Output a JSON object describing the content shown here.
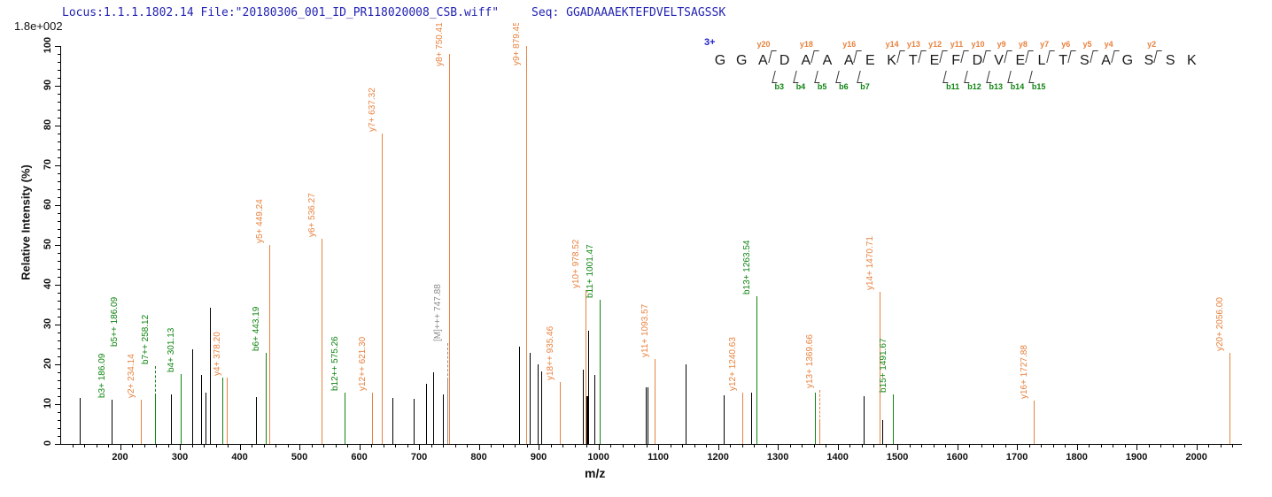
{
  "header": {
    "locus_file": "Locus:1.1.1.1802.14 File:\"20180306_001_ID_PR118020008_CSB.wiff\"",
    "seq": "Seq: GGADAAAEKTEFDVELTSAGSSK"
  },
  "colors": {
    "y_ion": "#e8823e",
    "b_ion": "#0e8410",
    "precursor": "#8c8c8c",
    "unassigned": "#000000",
    "header_text": "#2323b4",
    "axis": "#000000"
  },
  "axes": {
    "max_intensity_label": "1.8e+002",
    "y_title": "Relative  Intensity (%)",
    "x_title": "m/z",
    "y_min": 0,
    "y_max": 100,
    "y_major_step": 10,
    "y_minor_step": 2,
    "x_min": 100,
    "x_max": 2076,
    "x_label_min": 200,
    "x_label_max": 2000,
    "x_major_step": 100,
    "x_minor_step": 20
  },
  "sequence_annotation": {
    "charge": "3+",
    "residues": [
      "G",
      "G",
      "A",
      "D",
      "A",
      "A",
      "A",
      "E",
      "K",
      "T",
      "E",
      "F",
      "D",
      "V",
      "E",
      "L",
      "T",
      "S",
      "A",
      "G",
      "S",
      "S",
      "K"
    ],
    "cuts": [
      {
        "gap": 3,
        "y": "y20",
        "b": "b3"
      },
      {
        "gap": 4,
        "b": "b4"
      },
      {
        "gap": 5,
        "y": "y18",
        "b": "b5"
      },
      {
        "gap": 6,
        "b": "b6"
      },
      {
        "gap": 7,
        "y": "y16",
        "b": "b7"
      },
      {
        "gap": 9,
        "y": "y14"
      },
      {
        "gap": 10,
        "y": "y13"
      },
      {
        "gap": 11,
        "y": "y12",
        "b": "b11"
      },
      {
        "gap": 12,
        "y": "y11",
        "b": "b12"
      },
      {
        "gap": 13,
        "y": "y10",
        "b": "b13"
      },
      {
        "gap": 14,
        "y": "y9",
        "b": "b14"
      },
      {
        "gap": 15,
        "y": "y8",
        "b": "b15"
      },
      {
        "gap": 16,
        "y": "y7"
      },
      {
        "gap": 17,
        "y": "y6"
      },
      {
        "gap": 18,
        "y": "y5"
      },
      {
        "gap": 19,
        "y": "y4"
      },
      {
        "gap": 21,
        "y": "y2"
      }
    ]
  },
  "chart_data": {
    "type": "bar",
    "subtype": "ms2-spectrum",
    "title": "",
    "xlabel": "m/z",
    "ylabel": "Relative  Intensity (%)",
    "xlim": [
      100,
      2076
    ],
    "ylim": [
      0,
      100
    ],
    "peaks": [
      {
        "mz": 132,
        "pct": 11.5,
        "type": "unassigned"
      },
      {
        "mz": 186.09,
        "pct": 11.2,
        "type": "unassigned",
        "label": "b3+ 186.09",
        "label_type": "b",
        "label2": "b5++ 186.09"
      },
      {
        "mz": 234.14,
        "pct": 11.2,
        "type": "y",
        "label": "y2+ 234.14"
      },
      {
        "mz": 258.12,
        "pct": 12.0,
        "type": "b",
        "label": "b7++ 258.12",
        "dash": 34
      },
      {
        "mz": 285,
        "pct": 12.5,
        "type": "unassigned"
      },
      {
        "mz": 301.13,
        "pct": 17.5,
        "type": "b",
        "label": "b4+ 301.13"
      },
      {
        "mz": 320,
        "pct": 23.8,
        "type": "unassigned"
      },
      {
        "mz": 335,
        "pct": 17.3,
        "type": "unassigned"
      },
      {
        "mz": 343,
        "pct": 13.0,
        "type": "unassigned"
      },
      {
        "mz": 350,
        "pct": 34.3,
        "type": "unassigned"
      },
      {
        "mz": 371,
        "pct": 16.7,
        "type": "b"
      },
      {
        "mz": 378.2,
        "pct": 16.6,
        "type": "y",
        "label": "y4+ 378.20"
      },
      {
        "mz": 427,
        "pct": 11.8,
        "type": "unassigned"
      },
      {
        "mz": 443.19,
        "pct": 23.0,
        "type": "b",
        "label": "b6+ 443.19"
      },
      {
        "mz": 449.24,
        "pct": 50.0,
        "type": "y",
        "label": "y5+ 449.24"
      },
      {
        "mz": 536.27,
        "pct": 51.5,
        "type": "y",
        "label": "y6+ 536.27"
      },
      {
        "mz": 575.26,
        "pct": 13.0,
        "type": "b",
        "label": "b12++ 575.26"
      },
      {
        "mz": 621.3,
        "pct": 13.0,
        "type": "y",
        "label": "y12++ 621.30"
      },
      {
        "mz": 637.32,
        "pct": 78.0,
        "type": "y",
        "label": "y7+ 637.32"
      },
      {
        "mz": 656,
        "pct": 11.6,
        "type": "unassigned"
      },
      {
        "mz": 691,
        "pct": 11.4,
        "type": "unassigned"
      },
      {
        "mz": 712,
        "pct": 15.1,
        "type": "unassigned"
      },
      {
        "mz": 724,
        "pct": 17.9,
        "type": "unassigned"
      },
      {
        "mz": 740,
        "pct": 12.5,
        "type": "unassigned"
      },
      {
        "mz": 747.88,
        "pct": 16.0,
        "type": "precursor",
        "label": "[M]+++ 747.88",
        "dash": 42
      },
      {
        "mz": 750.41,
        "pct": 98.0,
        "type": "y",
        "label": "y8+ 750.41",
        "drop": 16
      },
      {
        "mz": 867,
        "pct": 24.5,
        "type": "unassigned"
      },
      {
        "mz": 879.45,
        "pct": 100.0,
        "type": "y",
        "label": "y9+ 879.45",
        "drop": 24
      },
      {
        "mz": 885,
        "pct": 22.9,
        "type": "unassigned"
      },
      {
        "mz": 898,
        "pct": 20.1,
        "type": "unassigned"
      },
      {
        "mz": 904,
        "pct": 18.2,
        "type": "unassigned"
      },
      {
        "mz": 935.46,
        "pct": 15.5,
        "type": "y",
        "label": "y18++ 935.46"
      },
      {
        "mz": 974,
        "pct": 18.7,
        "type": "unassigned"
      },
      {
        "mz": 978.52,
        "pct": 38.6,
        "type": "y",
        "label": "y10+ 978.52"
      },
      {
        "mz": 980,
        "pct": 12.0,
        "type": "unassigned",
        "wide": true
      },
      {
        "mz": 983,
        "pct": 28.4,
        "type": "unassigned"
      },
      {
        "mz": 993,
        "pct": 17.3,
        "type": "unassigned"
      },
      {
        "mz": 1001.47,
        "pct": 36.2,
        "type": "b",
        "label": "b11+ 1001.47"
      },
      {
        "mz": 1079,
        "pct": 14.3,
        "type": "unassigned"
      },
      {
        "mz": 1082,
        "pct": 14.3,
        "type": "unassigned"
      },
      {
        "mz": 1093.57,
        "pct": 21.4,
        "type": "y",
        "label": "y11+ 1093.57"
      },
      {
        "mz": 1146,
        "pct": 20.1,
        "type": "unassigned"
      },
      {
        "mz": 1209,
        "pct": 12.3,
        "type": "unassigned"
      },
      {
        "mz": 1240.63,
        "pct": 12.9,
        "type": "y",
        "label": "y12+ 1240.63"
      },
      {
        "mz": 1256,
        "pct": 13.0,
        "type": "unassigned"
      },
      {
        "mz": 1263.54,
        "pct": 37.1,
        "type": "b",
        "label": "b13+ 1263.54"
      },
      {
        "mz": 1362.6,
        "pct": 12.9,
        "type": "b"
      },
      {
        "mz": 1369.66,
        "pct": 5.6,
        "type": "y",
        "label": "y13+ 1369.66",
        "dash": 36
      },
      {
        "mz": 1443,
        "pct": 11.9,
        "type": "unassigned"
      },
      {
        "mz": 1470.71,
        "pct": 38.2,
        "type": "y",
        "label": "y14+ 1470.71"
      },
      {
        "mz": 1474,
        "pct": 6.0,
        "type": "unassigned"
      },
      {
        "mz": 1491.67,
        "pct": 12.5,
        "type": "b",
        "label": "b15+ 1491.67"
      },
      {
        "mz": 1727.88,
        "pct": 11.0,
        "type": "y",
        "label": "y16+ 1727.88"
      },
      {
        "mz": 2056.0,
        "pct": 23.0,
        "type": "y",
        "label": "y20+ 2056.00"
      }
    ]
  }
}
